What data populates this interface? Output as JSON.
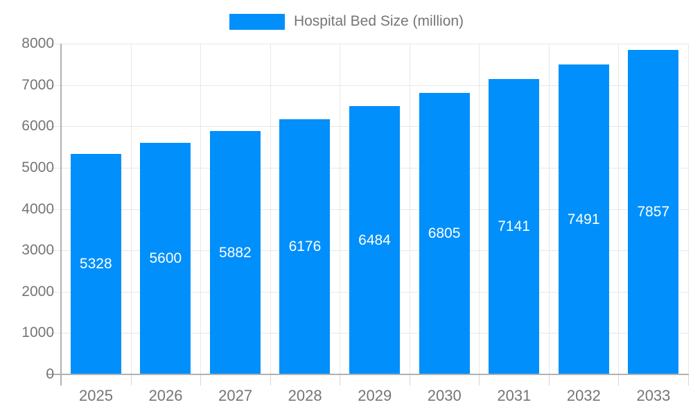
{
  "chart_data": {
    "type": "bar",
    "title": "",
    "legend": {
      "label": "Hospital Bed Size (million)",
      "position": "top"
    },
    "categories": [
      "2025",
      "2026",
      "2027",
      "2028",
      "2029",
      "2030",
      "2031",
      "2032",
      "2033"
    ],
    "series": [
      {
        "name": "Hospital Bed Size (million)",
        "values": [
          5328,
          5600,
          5882,
          6176,
          6484,
          6805,
          7141,
          7491,
          7857
        ]
      }
    ],
    "value_labels_shown": true,
    "xlabel": "",
    "ylabel": "",
    "ylim": [
      0,
      8000
    ],
    "yticks": [
      0,
      1000,
      2000,
      3000,
      4000,
      5000,
      6000,
      7000,
      8000
    ],
    "grid": true,
    "colors": {
      "bar": "#008FFB",
      "value_label": "#FFFFFF",
      "axis_label": "#757575",
      "legend_text": "#757575",
      "gridline": "#E7E7E7",
      "axis_line": "#B1B1B1",
      "background": "#FFFFFF"
    }
  }
}
